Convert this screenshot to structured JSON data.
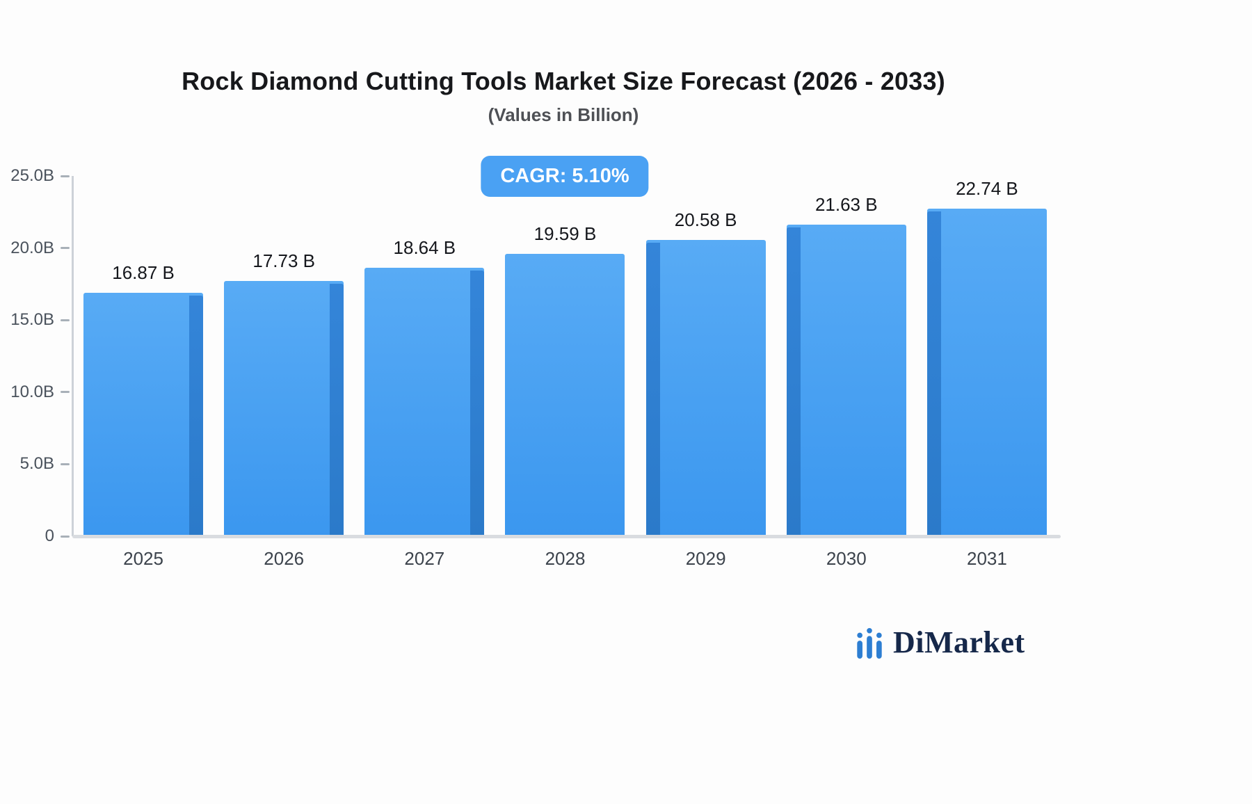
{
  "header": {
    "title": "Rock Diamond Cutting Tools Market Size Forecast (2026 - 2033)",
    "subtitle": "(Values in Billion)",
    "cagr_badge": "CAGR: 5.10%"
  },
  "logo": {
    "brand": "DiMarket",
    "icon": "bar-chart-icon"
  },
  "colors": {
    "bar_top": "#58abf5",
    "bar_bottom": "#3b97ef",
    "bar_side": "#2d7ed2",
    "badge_background": "#4aa1f3",
    "badge_text": "#ffffff",
    "title_text": "#17181b",
    "axis_text": "#4a525c",
    "value_label_text": "#15171c",
    "axis_line": "#d9dce0",
    "logo_text": "#16284a",
    "logo_icon": "#2d7ed2"
  },
  "chart_data": {
    "type": "bar",
    "title": "Rock Diamond Cutting Tools Market Size Forecast (2026 - 2033)",
    "subtitle": "(Values in Billion)",
    "annotation": "CAGR: 5.10%",
    "unit": "Billion",
    "categories": [
      "2025",
      "2026",
      "2027",
      "2028",
      "2029",
      "2030",
      "2031"
    ],
    "values": [
      16.87,
      17.73,
      18.64,
      19.59,
      20.58,
      21.63,
      22.74
    ],
    "value_labels": [
      "16.87 B",
      "17.73 B",
      "18.64 B",
      "19.59 B",
      "20.58 B",
      "21.63 B",
      "22.74 B"
    ],
    "ylim": [
      0,
      25
    ],
    "yticks": [
      0,
      5,
      10,
      15,
      20,
      25
    ],
    "ytick_labels": [
      "0",
      "5.0B",
      "10.0B",
      "15.0B",
      "20.0B",
      "25.0B"
    ],
    "grid": false,
    "legend": false
  }
}
